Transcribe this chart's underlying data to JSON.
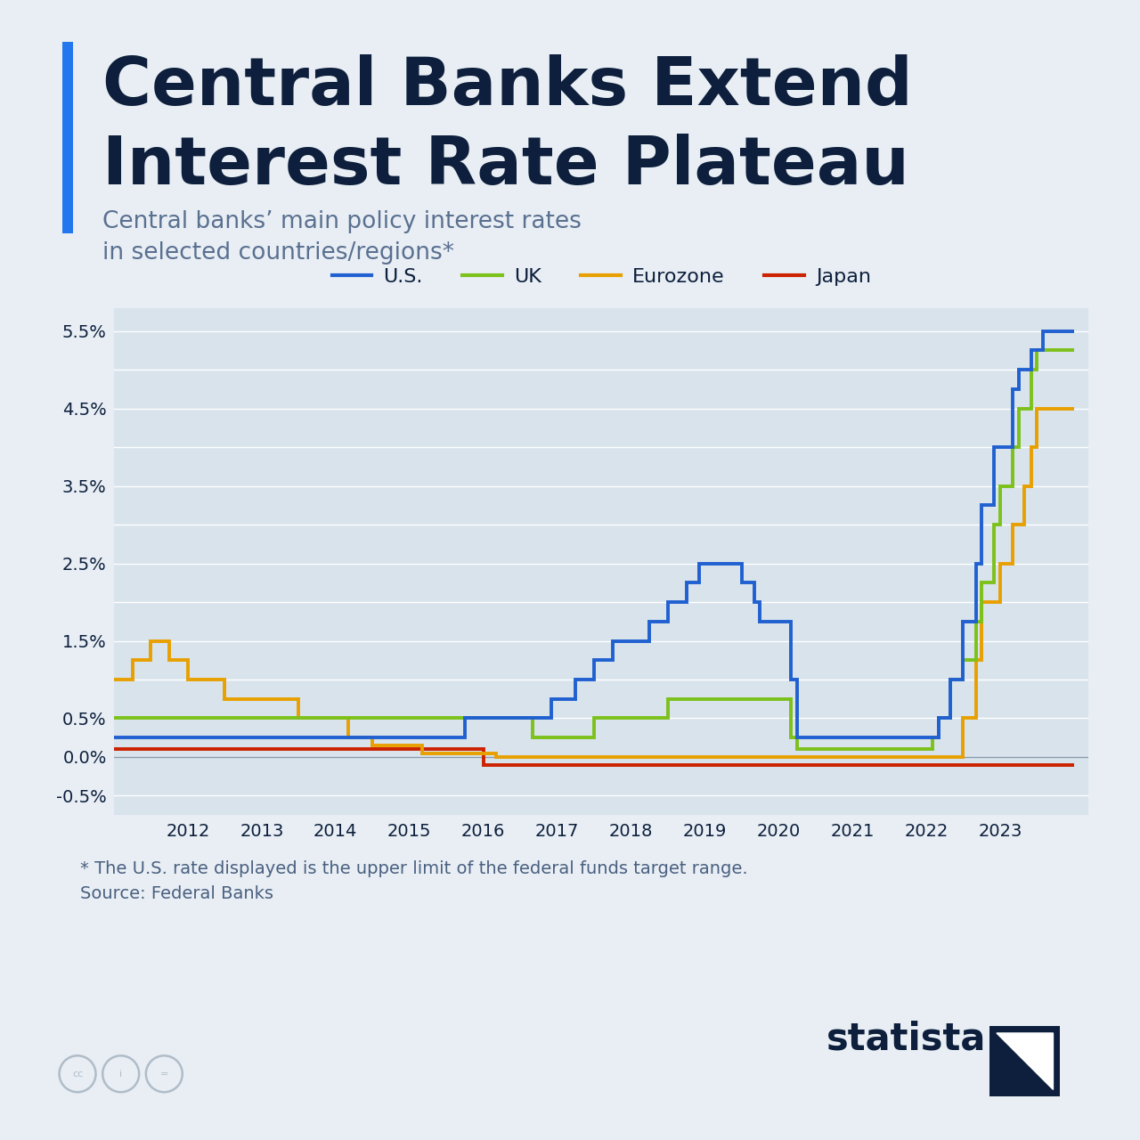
{
  "title_line1": "Central Banks Extend",
  "title_line2": "Interest Rate Plateau",
  "subtitle": "Central banks’ main policy interest rates\nin selected countries/regions*",
  "footnote": "* The U.S. rate displayed is the upper limit of the federal funds target range.\nSource: Federal Banks",
  "background_color": "#e8eef4",
  "plot_bg_color": "#d8e3ec",
  "title_color": "#0d1f3c",
  "subtitle_color": "#5a7090",
  "footnote_color": "#4a6080",
  "accent_bar_color": "#2277ee",
  "series": {
    "US": {
      "color": "#2060d0",
      "label": "U.S.",
      "data": [
        [
          2011.0,
          0.25
        ],
        [
          2015.75,
          0.25
        ],
        [
          2015.75,
          0.5
        ],
        [
          2015.92,
          0.5
        ],
        [
          2016.92,
          0.5
        ],
        [
          2016.92,
          0.75
        ],
        [
          2017.0,
          0.75
        ],
        [
          2017.25,
          0.75
        ],
        [
          2017.25,
          1.0
        ],
        [
          2017.5,
          1.0
        ],
        [
          2017.5,
          1.25
        ],
        [
          2017.75,
          1.25
        ],
        [
          2017.75,
          1.5
        ],
        [
          2018.0,
          1.5
        ],
        [
          2018.25,
          1.5
        ],
        [
          2018.25,
          1.75
        ],
        [
          2018.5,
          1.75
        ],
        [
          2018.5,
          2.0
        ],
        [
          2018.75,
          2.0
        ],
        [
          2018.75,
          2.25
        ],
        [
          2018.92,
          2.25
        ],
        [
          2018.92,
          2.5
        ],
        [
          2019.5,
          2.5
        ],
        [
          2019.5,
          2.25
        ],
        [
          2019.67,
          2.25
        ],
        [
          2019.67,
          2.0
        ],
        [
          2019.75,
          2.0
        ],
        [
          2019.75,
          1.75
        ],
        [
          2020.0,
          1.75
        ],
        [
          2020.17,
          1.75
        ],
        [
          2020.17,
          1.0
        ],
        [
          2020.25,
          1.0
        ],
        [
          2020.25,
          0.25
        ],
        [
          2022.0,
          0.25
        ],
        [
          2022.17,
          0.25
        ],
        [
          2022.17,
          0.5
        ],
        [
          2022.33,
          0.5
        ],
        [
          2022.33,
          1.0
        ],
        [
          2022.5,
          1.0
        ],
        [
          2022.5,
          1.75
        ],
        [
          2022.67,
          1.75
        ],
        [
          2022.67,
          2.5
        ],
        [
          2022.75,
          2.5
        ],
        [
          2022.75,
          3.25
        ],
        [
          2022.92,
          3.25
        ],
        [
          2022.92,
          4.0
        ],
        [
          2023.0,
          4.0
        ],
        [
          2023.17,
          4.0
        ],
        [
          2023.17,
          4.75
        ],
        [
          2023.25,
          4.75
        ],
        [
          2023.25,
          5.0
        ],
        [
          2023.42,
          5.0
        ],
        [
          2023.42,
          5.25
        ],
        [
          2023.58,
          5.25
        ],
        [
          2023.58,
          5.5
        ],
        [
          2024.0,
          5.5
        ]
      ]
    },
    "UK": {
      "color": "#7dc11b",
      "label": "UK",
      "data": [
        [
          2011.0,
          0.5
        ],
        [
          2016.67,
          0.5
        ],
        [
          2016.67,
          0.25
        ],
        [
          2017.5,
          0.25
        ],
        [
          2017.5,
          0.5
        ],
        [
          2018.5,
          0.5
        ],
        [
          2018.5,
          0.75
        ],
        [
          2019.5,
          0.75
        ],
        [
          2020.17,
          0.75
        ],
        [
          2020.17,
          0.25
        ],
        [
          2020.25,
          0.25
        ],
        [
          2020.25,
          0.1
        ],
        [
          2022.0,
          0.1
        ],
        [
          2022.08,
          0.1
        ],
        [
          2022.08,
          0.25
        ],
        [
          2022.17,
          0.25
        ],
        [
          2022.17,
          0.5
        ],
        [
          2022.33,
          0.5
        ],
        [
          2022.33,
          1.0
        ],
        [
          2022.5,
          1.0
        ],
        [
          2022.5,
          1.25
        ],
        [
          2022.67,
          1.25
        ],
        [
          2022.67,
          1.75
        ],
        [
          2022.75,
          1.75
        ],
        [
          2022.75,
          2.25
        ],
        [
          2022.92,
          2.25
        ],
        [
          2022.92,
          3.0
        ],
        [
          2023.0,
          3.0
        ],
        [
          2023.0,
          3.5
        ],
        [
          2023.17,
          3.5
        ],
        [
          2023.17,
          4.0
        ],
        [
          2023.25,
          4.0
        ],
        [
          2023.25,
          4.5
        ],
        [
          2023.42,
          4.5
        ],
        [
          2023.42,
          5.0
        ],
        [
          2023.5,
          5.0
        ],
        [
          2023.5,
          5.25
        ],
        [
          2024.0,
          5.25
        ]
      ]
    },
    "Eurozone": {
      "color": "#e8a000",
      "label": "Eurozone",
      "data": [
        [
          2011.0,
          1.0
        ],
        [
          2011.25,
          1.0
        ],
        [
          2011.25,
          1.25
        ],
        [
          2011.5,
          1.25
        ],
        [
          2011.5,
          1.5
        ],
        [
          2011.75,
          1.5
        ],
        [
          2011.75,
          1.25
        ],
        [
          2012.0,
          1.25
        ],
        [
          2012.0,
          1.0
        ],
        [
          2012.5,
          1.0
        ],
        [
          2012.5,
          0.75
        ],
        [
          2013.5,
          0.75
        ],
        [
          2013.5,
          0.5
        ],
        [
          2014.17,
          0.5
        ],
        [
          2014.17,
          0.25
        ],
        [
          2014.5,
          0.25
        ],
        [
          2014.5,
          0.15
        ],
        [
          2015.17,
          0.15
        ],
        [
          2015.17,
          0.05
        ],
        [
          2016.17,
          0.05
        ],
        [
          2016.17,
          0.0
        ],
        [
          2022.5,
          0.0
        ],
        [
          2022.5,
          0.5
        ],
        [
          2022.67,
          0.5
        ],
        [
          2022.67,
          1.25
        ],
        [
          2022.75,
          1.25
        ],
        [
          2022.75,
          2.0
        ],
        [
          2023.0,
          2.0
        ],
        [
          2023.0,
          2.5
        ],
        [
          2023.17,
          2.5
        ],
        [
          2023.17,
          3.0
        ],
        [
          2023.33,
          3.0
        ],
        [
          2023.33,
          3.5
        ],
        [
          2023.42,
          3.5
        ],
        [
          2023.42,
          4.0
        ],
        [
          2023.5,
          4.0
        ],
        [
          2023.5,
          4.5
        ],
        [
          2024.0,
          4.5
        ]
      ]
    },
    "Japan": {
      "color": "#cc2200",
      "label": "Japan",
      "data": [
        [
          2011.0,
          0.1
        ],
        [
          2016.0,
          0.1
        ],
        [
          2016.0,
          -0.1
        ],
        [
          2024.0,
          -0.1
        ]
      ]
    }
  },
  "yticks": [
    -0.5,
    0.0,
    0.5,
    1.5,
    2.5,
    3.5,
    4.5,
    5.5
  ],
  "ytick_labels": [
    "-0.5%",
    "0.0%",
    "0.5%",
    "1.5%",
    "2.5%",
    "3.5%",
    "4.5%",
    "5.5%"
  ],
  "ygrid_lines": [
    -0.5,
    0.0,
    0.5,
    1.0,
    1.5,
    2.0,
    2.5,
    3.0,
    3.5,
    4.0,
    4.5,
    5.0,
    5.5
  ],
  "xticks": [
    2012,
    2013,
    2014,
    2015,
    2016,
    2017,
    2018,
    2019,
    2020,
    2021,
    2022,
    2023
  ],
  "xlim": [
    2011.0,
    2024.2
  ],
  "ylim": [
    -0.75,
    5.8
  ]
}
